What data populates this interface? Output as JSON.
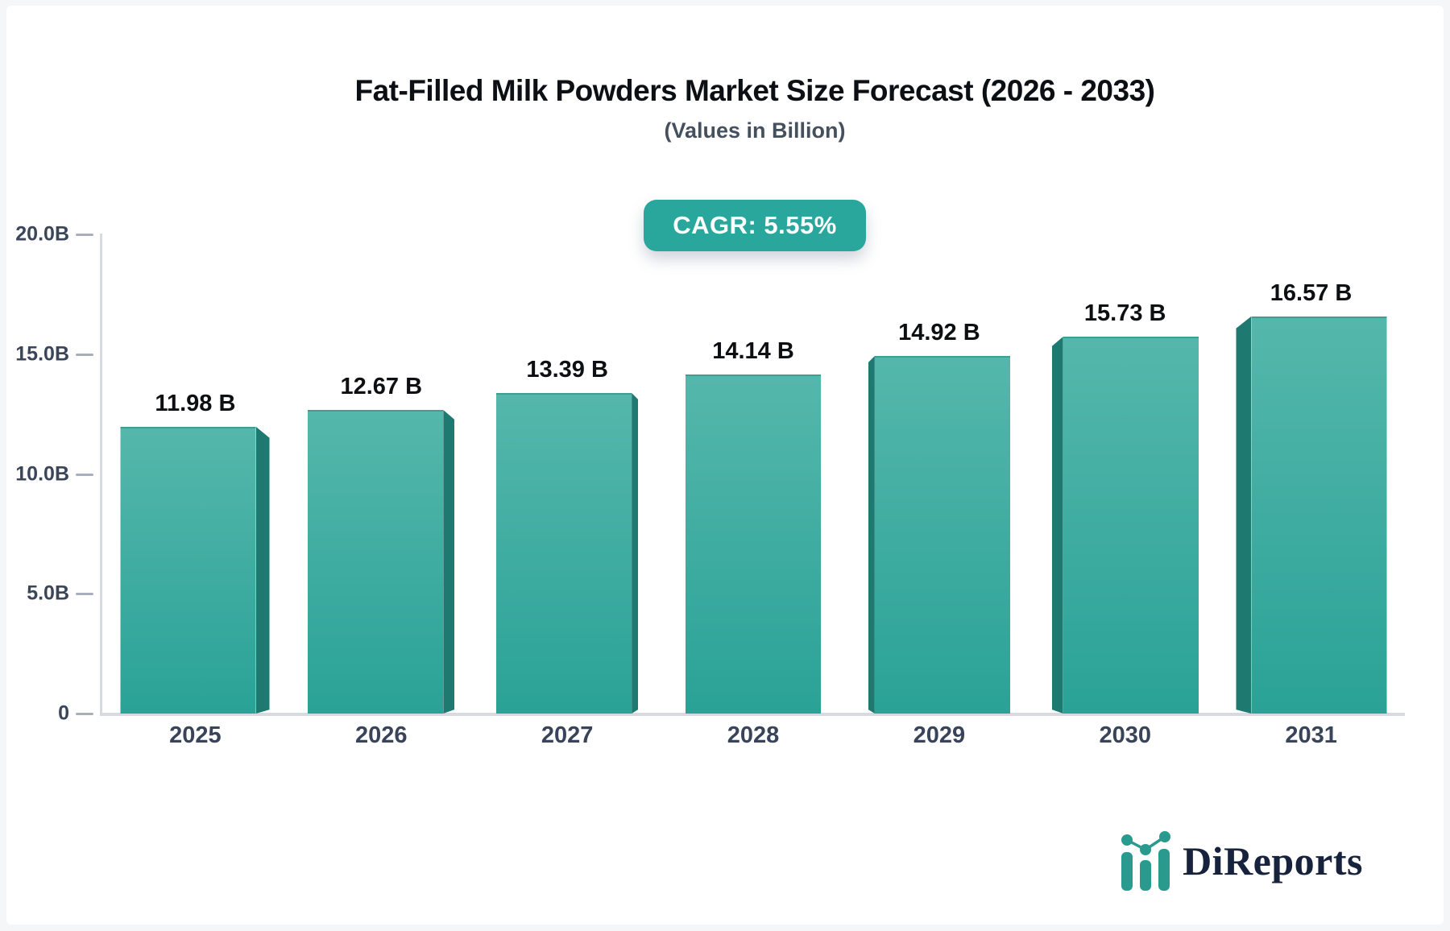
{
  "page": {
    "background": "#f5f6f8",
    "card_background": "#ffffff"
  },
  "chart_data": {
    "type": "bar",
    "title": "Fat-Filled Milk Powders Market Size Forecast (2026 - 2033)",
    "subtitle": "(Values in Billion)",
    "cagr_label": "CAGR: 5.55%",
    "categories": [
      "2025",
      "2026",
      "2027",
      "2028",
      "2029",
      "2030",
      "2031"
    ],
    "values": [
      11.98,
      12.67,
      13.39,
      14.14,
      14.92,
      15.73,
      16.57
    ],
    "value_labels": [
      "11.98 B",
      "12.67 B",
      "13.39 B",
      "14.14 B",
      "14.92 B",
      "15.73 B",
      "16.57 B"
    ],
    "unit": "Billion",
    "ylim": [
      0,
      20
    ],
    "ytick_labels": [
      "20.0B",
      "15.0B",
      "10.0B",
      "5.0B",
      "0"
    ],
    "ytick_values": [
      20,
      15,
      10,
      5,
      0
    ],
    "grid": false,
    "legend": false,
    "bar_style": "3d-extruded",
    "colors": {
      "bar_top": "#55b7ac",
      "bar_bottom": "#2aa296",
      "bar_side": "#1e7a70",
      "badge_bg": "#2aa79d",
      "axis": "#d7dade",
      "tick_mark": "#a9afba",
      "axis_text": "#3b4658",
      "value_text": "#0d0f12"
    }
  },
  "footer": {
    "logo_text": "DiReports",
    "logo_icon": "chart-bars-trend-logo-icon",
    "logo_teal": "#2a9a8f",
    "logo_navy": "#17223c"
  }
}
